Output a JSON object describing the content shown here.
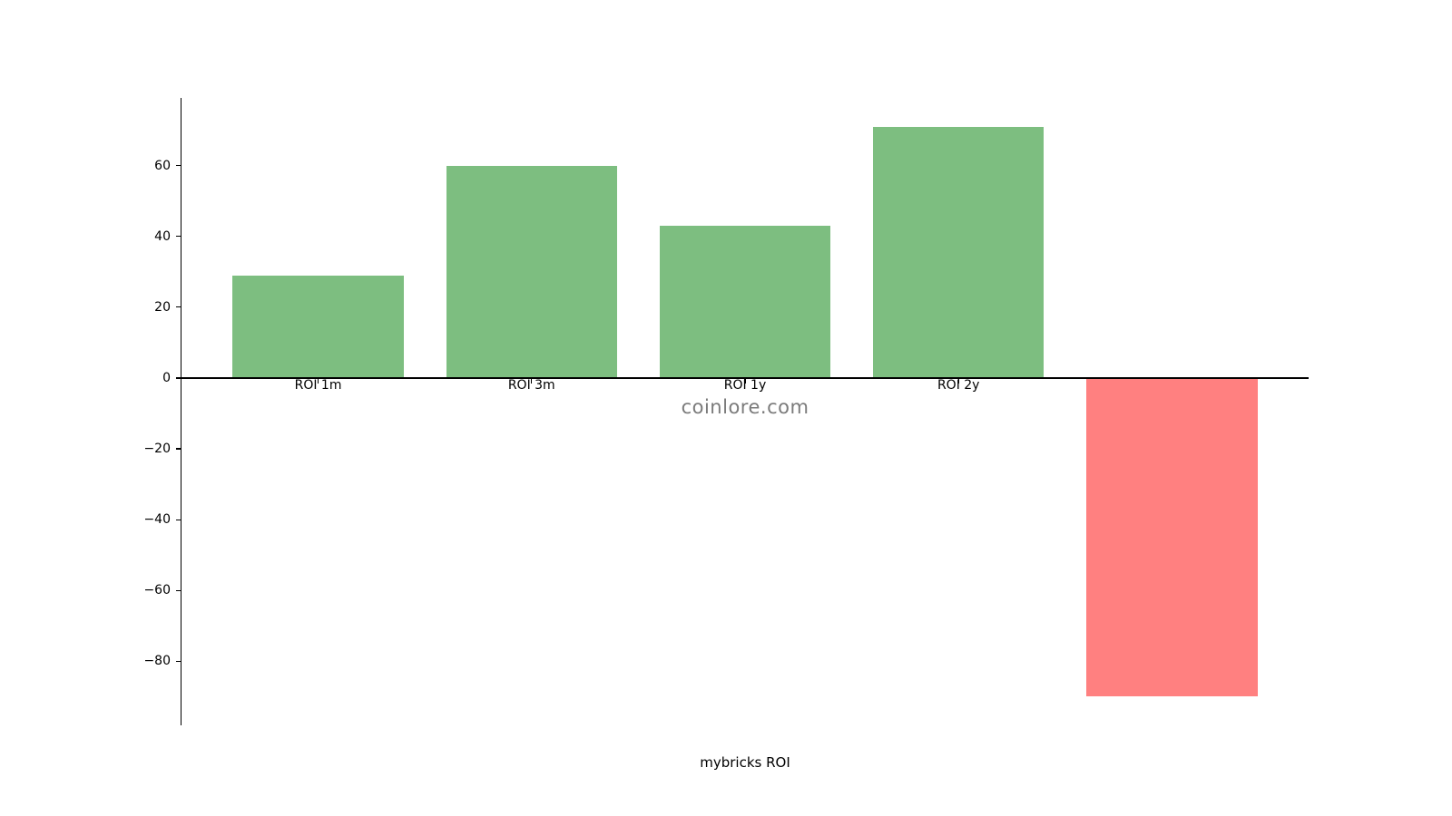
{
  "watermark": {
    "text": "coinlore.com",
    "color": "#7b7b7b"
  },
  "chart_data": {
    "type": "bar",
    "title": "",
    "xlabel": "mybricks ROI",
    "ylabel": "",
    "categories": [
      "ROI 1m",
      "ROI 3m",
      "ROI 1y",
      "ROI 2y",
      ""
    ],
    "values": [
      29,
      60,
      43,
      71,
      -90
    ],
    "series_name": "mybricks ROI",
    "positive_color": "#7DBE80",
    "negative_color": "#FF8080",
    "axis_color": "#000000",
    "tick_text_color": "#000000",
    "y_ticks": [
      {
        "value": 60,
        "label": "60"
      },
      {
        "value": 40,
        "label": "40"
      },
      {
        "value": 20,
        "label": "20"
      },
      {
        "value": 0,
        "label": "0"
      },
      {
        "value": -20,
        "label": "−20"
      },
      {
        "value": -40,
        "label": "−40"
      },
      {
        "value": -60,
        "label": "−60"
      },
      {
        "value": -80,
        "label": "−80"
      }
    ],
    "ylim": [
      -98.1,
      79.1
    ],
    "xlim": [
      -0.64,
      4.64
    ],
    "bar_width_fraction": 0.8,
    "grid": false,
    "legend": null,
    "watermark": "coinlore.com"
  }
}
